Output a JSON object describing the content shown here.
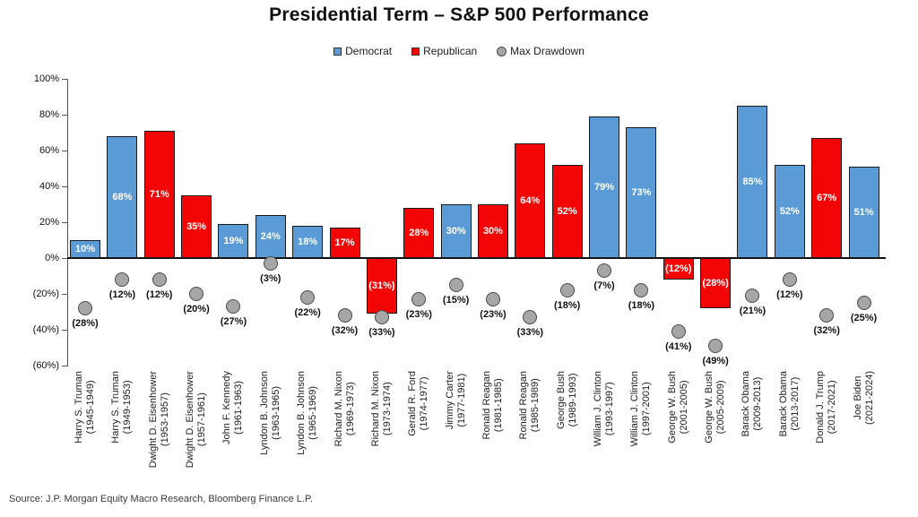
{
  "title": "Presidential Term – S&P 500 Performance",
  "legend": {
    "democrat": {
      "label": "Democrat"
    },
    "republican": {
      "label": "Republican"
    },
    "max_drawdown": {
      "label": "Max Drawdown"
    }
  },
  "colors": {
    "democrat": "#5B9BD5",
    "republican": "#F40505",
    "drawdown_fill": "#A6A6A6",
    "drawdown_border": "#4A4A4A",
    "bar_border": "#1A1A1A"
  },
  "source": "Source: J.P. Morgan Equity Macro Research, Bloomberg Finance L.P.",
  "chart_data": {
    "type": "bar",
    "title": "Presidential Term – S&P 500 Performance",
    "xlabel": "",
    "ylabel": "",
    "ylim": [
      -60,
      100
    ],
    "grid": false,
    "legend_position": "top",
    "y_ticks": [
      {
        "value": 100,
        "label": "100%"
      },
      {
        "value": 80,
        "label": "80%"
      },
      {
        "value": 60,
        "label": "60%"
      },
      {
        "value": 40,
        "label": "40%"
      },
      {
        "value": 20,
        "label": "20%"
      },
      {
        "value": 0,
        "label": "0%"
      },
      {
        "value": -20,
        "label": "(20%)"
      },
      {
        "value": -40,
        "label": "(40%)"
      },
      {
        "value": -60,
        "label": "(60%)"
      }
    ],
    "presidents": [
      {
        "name": "Harry S. Truman",
        "years": "(1945-1949)",
        "party": "democrat",
        "return_pct": 10,
        "return_label": "10%",
        "max_drawdown_pct": -28,
        "drawdown_label": "(28%)"
      },
      {
        "name": "Harry S. Truman",
        "years": "(1949-1953)",
        "party": "democrat",
        "return_pct": 68,
        "return_label": "68%",
        "max_drawdown_pct": -12,
        "drawdown_label": "(12%)"
      },
      {
        "name": "Dwight D. Eisenhower",
        "years": "(1953-1957)",
        "party": "republican",
        "return_pct": 71,
        "return_label": "71%",
        "max_drawdown_pct": -12,
        "drawdown_label": "(12%)"
      },
      {
        "name": "Dwight D. Eisenhower",
        "years": "(1957-1961)",
        "party": "republican",
        "return_pct": 35,
        "return_label": "35%",
        "max_drawdown_pct": -20,
        "drawdown_label": "(20%)"
      },
      {
        "name": "John F. Kennedy",
        "years": "(1961-1963)",
        "party": "democrat",
        "return_pct": 19,
        "return_label": "19%",
        "max_drawdown_pct": -27,
        "drawdown_label": "(27%)"
      },
      {
        "name": "Lyndon B. Johnson",
        "years": "(1963-1965)",
        "party": "democrat",
        "return_pct": 24,
        "return_label": "24%",
        "max_drawdown_pct": -3,
        "drawdown_label": "(3%)"
      },
      {
        "name": "Lyndon B. Johnson",
        "years": "(1965-1969)",
        "party": "democrat",
        "return_pct": 18,
        "return_label": "18%",
        "max_drawdown_pct": -22,
        "drawdown_label": "(22%)"
      },
      {
        "name": "Richard M. Nixon",
        "years": "(1969-1973)",
        "party": "republican",
        "return_pct": 17,
        "return_label": "17%",
        "max_drawdown_pct": -32,
        "drawdown_label": "(32%)"
      },
      {
        "name": "Richard M. Nixon",
        "years": "(1973-1974)",
        "party": "republican",
        "return_pct": -31,
        "return_label": "(31%)",
        "max_drawdown_pct": -33,
        "drawdown_label": "(33%)"
      },
      {
        "name": "Gerald R. Ford",
        "years": "(1974-1977)",
        "party": "republican",
        "return_pct": 28,
        "return_label": "28%",
        "max_drawdown_pct": -23,
        "drawdown_label": "(23%)"
      },
      {
        "name": "Jimmy Carter",
        "years": "(1977-1981)",
        "party": "democrat",
        "return_pct": 30,
        "return_label": "30%",
        "max_drawdown_pct": -15,
        "drawdown_label": "(15%)"
      },
      {
        "name": "Ronald Reagan",
        "years": "(1981-1985)",
        "party": "republican",
        "return_pct": 30,
        "return_label": "30%",
        "max_drawdown_pct": -23,
        "drawdown_label": "(23%)"
      },
      {
        "name": "Ronald Reagan",
        "years": "(1985-1989)",
        "party": "republican",
        "return_pct": 64,
        "return_label": "64%",
        "max_drawdown_pct": -33,
        "drawdown_label": "(33%)"
      },
      {
        "name": "George Bush",
        "years": "(1989-1993)",
        "party": "republican",
        "return_pct": 52,
        "return_label": "52%",
        "max_drawdown_pct": -18,
        "drawdown_label": "(18%)"
      },
      {
        "name": "William J. Clinton",
        "years": "(1993-1997)",
        "party": "democrat",
        "return_pct": 79,
        "return_label": "79%",
        "max_drawdown_pct": -7,
        "drawdown_label": "(7%)"
      },
      {
        "name": "William J. Clinton",
        "years": "(1997-2001)",
        "party": "democrat",
        "return_pct": 73,
        "return_label": "73%",
        "max_drawdown_pct": -18,
        "drawdown_label": "(18%)"
      },
      {
        "name": "George W. Bush",
        "years": "(2001-2005)",
        "party": "republican",
        "return_pct": -12,
        "return_label": "(12%)",
        "max_drawdown_pct": -41,
        "drawdown_label": "(41%)"
      },
      {
        "name": "George W. Bush",
        "years": "(2005-2009)",
        "party": "republican",
        "return_pct": -28,
        "return_label": "(28%)",
        "max_drawdown_pct": -49,
        "drawdown_label": "(49%)"
      },
      {
        "name": "Barack Obama",
        "years": "(2009-2013)",
        "party": "democrat",
        "return_pct": 85,
        "return_label": "85%",
        "max_drawdown_pct": -21,
        "drawdown_label": "(21%)"
      },
      {
        "name": "Barack Obama",
        "years": "(2013-2017)",
        "party": "democrat",
        "return_pct": 52,
        "return_label": "52%",
        "max_drawdown_pct": -12,
        "drawdown_label": "(12%)"
      },
      {
        "name": "Donald J. Trump",
        "years": "(2017-2021)",
        "party": "republican",
        "return_pct": 67,
        "return_label": "67%",
        "max_drawdown_pct": -32,
        "drawdown_label": "(32%)"
      },
      {
        "name": "Joe Biden",
        "years": "(2021-2024)",
        "party": "democrat",
        "return_pct": 51,
        "return_label": "51%",
        "max_drawdown_pct": -25,
        "drawdown_label": "(25%)"
      }
    ]
  }
}
